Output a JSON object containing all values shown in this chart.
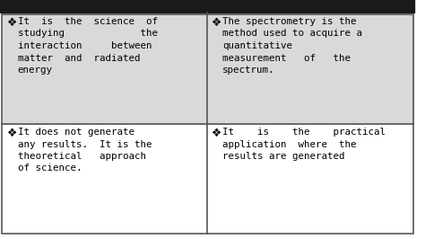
{
  "title_bg": "#1a1a1a",
  "cell_bg_top": "#d9d9d9",
  "cell_bg_bottom": "#ffffff",
  "border_color": "#555555",
  "text_color": "#000000",
  "bullet": "❖",
  "top_left_lines": [
    "It  is  the  science  of",
    "studying             the",
    "interaction     between",
    "matter  and  radiated",
    "energy"
  ],
  "top_right_lines": [
    "The spectrometry is the",
    "method used to acquire a",
    "quantitative",
    "measurement   of   the",
    "spectrum."
  ],
  "bottom_left_lines": [
    "It does not generate",
    "any results.  It is the",
    "theoretical   approach",
    "of science."
  ],
  "bottom_right_lines": [
    "It    is    the    practical",
    "application  where  the",
    "results are generated"
  ],
  "figsize": [
    4.74,
    2.66
  ],
  "dpi": 100
}
